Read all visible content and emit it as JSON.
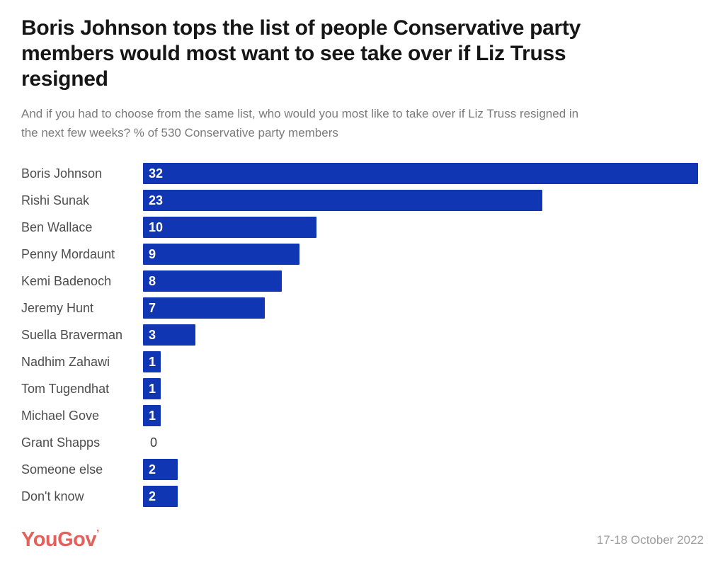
{
  "header": {
    "title_lines": [
      "Boris Johnson tops the list of people Conservative party",
      "members would most want to see take over if Liz Truss",
      "resigned"
    ],
    "subtitle_lines": [
      "And if you had to choose from the same list, who would you most like to take over if Liz Truss resigned in",
      "the next few weeks? % of 530 Conservative party members"
    ]
  },
  "chart_data": {
    "type": "bar",
    "orientation": "horizontal",
    "title": "Boris Johnson tops the list of people Conservative party members would most want to see take over if Liz Truss resigned",
    "subtitle": "And if you had to choose from the same list, who would you most like to take over if Liz Truss resigned in the next few weeks? % of 530 Conservative party members",
    "categories": [
      "Boris Johnson",
      "Rishi Sunak",
      "Ben Wallace",
      "Penny Mordaunt",
      "Kemi Badenoch",
      "Jeremy Hunt",
      "Suella Braverman",
      "Nadhim Zahawi",
      "Tom Tugendhat",
      "Michael Gove",
      "Grant Shapps",
      "Someone else",
      "Don't know"
    ],
    "values": [
      32,
      23,
      10,
      9,
      8,
      7,
      3,
      1,
      1,
      1,
      0,
      2,
      2
    ],
    "value_unit": "%",
    "xlim": [
      0,
      32
    ],
    "grid": false,
    "legend": false,
    "data_labels": "inside-left",
    "bar_color": "#1136B3"
  },
  "footer": {
    "logo_text": "YouGov",
    "logo_tick": "’",
    "date": "17-18 October 2022"
  },
  "colors": {
    "bar": "#1136B3",
    "title_text": "#161616",
    "subtitle_text": "#7b7b7b",
    "category_text": "#4d4d4d",
    "value_text": "#ffffff",
    "zero_value_text": "#3c3c3c",
    "logo": "#E4605A",
    "date_text": "#9d9d9d",
    "background": "#ffffff"
  }
}
